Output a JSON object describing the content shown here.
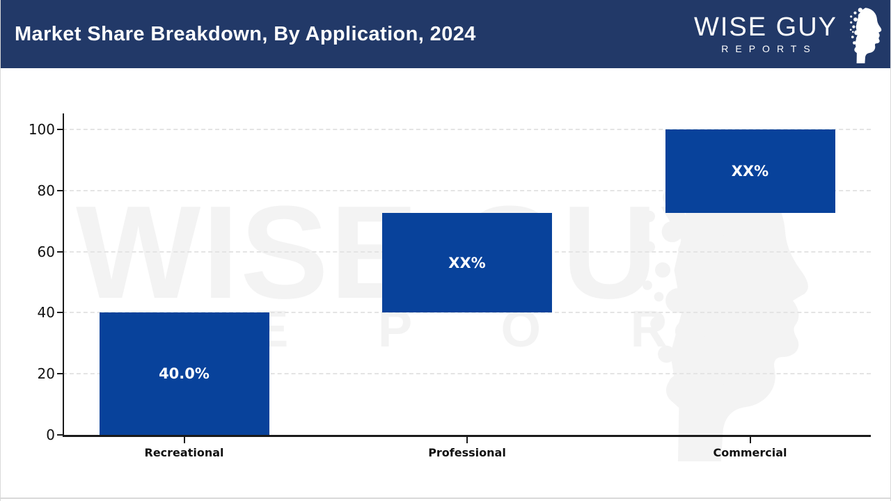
{
  "header": {
    "title": "Market Share Breakdown, By Application, 2024",
    "logo": {
      "line1": "WISE GUY",
      "line2": "REPORTS"
    },
    "bg_color": "#223968"
  },
  "watermark": {
    "line1": "WISE GUY",
    "line2": "REPORTS"
  },
  "chart_data": {
    "type": "bar",
    "subtype": "waterfall-stacked-segments",
    "title": "Market Share Breakdown, By Application, 2024",
    "categories": [
      "Recreational",
      "Professional",
      "Commercial"
    ],
    "segments": [
      {
        "category": "Recreational",
        "start": 0,
        "end": 40,
        "label": "40.0%"
      },
      {
        "category": "Professional",
        "start": 40,
        "end": 72.7,
        "label": "XX%"
      },
      {
        "category": "Commercial",
        "start": 72.7,
        "end": 100,
        "label": "XX%"
      }
    ],
    "yticks": [
      0,
      20,
      40,
      60,
      80,
      100
    ],
    "ylim": [
      0,
      105
    ],
    "xlabel": "",
    "ylabel": "",
    "grid": true,
    "grid_style": "dashed",
    "bar_color": "#08429b",
    "bar_label_color": "#ffffff",
    "axis_color": "#1a1a1a",
    "legend": "none"
  }
}
